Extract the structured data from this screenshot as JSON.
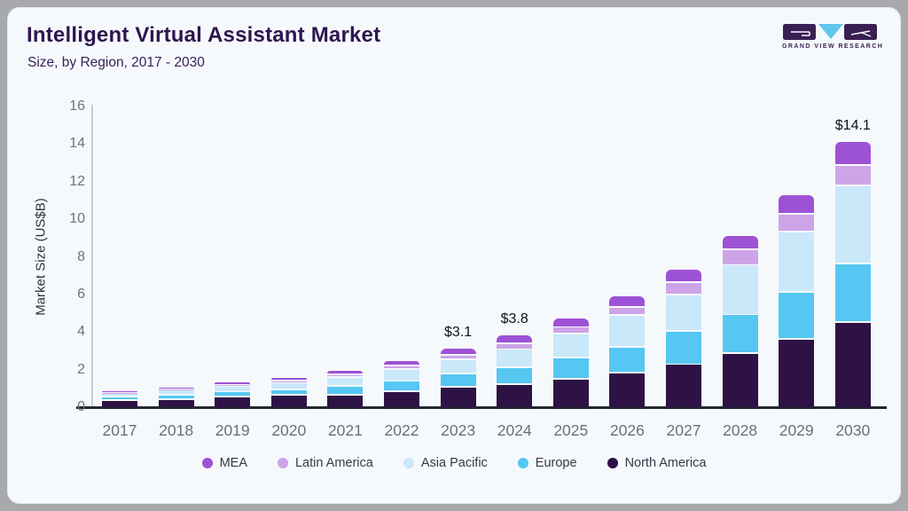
{
  "header": {
    "title": "Intelligent Virtual Assistant Market",
    "subtitle": "Size, by Region, 2017 - 2030"
  },
  "logo": {
    "brand": "GRAND VIEW RESEARCH",
    "block_color": "#3a2052",
    "triangle_color": "#5fc6ec"
  },
  "chart_data": {
    "type": "bar",
    "stacked": true,
    "title": "Intelligent Virtual Assistant Market",
    "subtitle": "Size, by Region, 2017 - 2030",
    "xlabel": "",
    "ylabel": "Market Size (US$B)",
    "ylim": [
      0,
      16
    ],
    "yticks": [
      0,
      2,
      4,
      6,
      8,
      10,
      12,
      14,
      16
    ],
    "grid": false,
    "legend_position": "bottom",
    "categories": [
      "2017",
      "2018",
      "2019",
      "2020",
      "2021",
      "2022",
      "2023",
      "2024",
      "2025",
      "2026",
      "2027",
      "2028",
      "2029",
      "2030"
    ],
    "series": [
      {
        "name": "North America",
        "color": "#2e1245",
        "values": [
          0.32,
          0.38,
          0.53,
          0.6,
          0.62,
          0.8,
          1.05,
          1.2,
          1.45,
          1.8,
          2.25,
          2.85,
          3.6,
          4.5
        ]
      },
      {
        "name": "Europe",
        "color": "#55c7f2",
        "values": [
          0.19,
          0.24,
          0.25,
          0.31,
          0.48,
          0.55,
          0.7,
          0.88,
          1.15,
          1.35,
          1.75,
          2.04,
          2.5,
          3.1
        ]
      },
      {
        "name": "Asia Pacific",
        "color": "#c9e8fa",
        "values": [
          0.2,
          0.27,
          0.3,
          0.36,
          0.47,
          0.65,
          0.75,
          0.97,
          1.28,
          1.7,
          1.95,
          2.64,
          3.2,
          4.15
        ]
      },
      {
        "name": "Latin America",
        "color": "#cda4e8",
        "values": [
          0.06,
          0.07,
          0.08,
          0.1,
          0.13,
          0.16,
          0.25,
          0.32,
          0.35,
          0.45,
          0.65,
          0.82,
          0.95,
          1.1
        ]
      },
      {
        "name": "MEA",
        "color": "#9d52d5",
        "values": [
          0.08,
          0.1,
          0.14,
          0.18,
          0.25,
          0.29,
          0.35,
          0.43,
          0.47,
          0.6,
          0.7,
          0.75,
          1.05,
          1.25
        ]
      }
    ],
    "totals": [
      0.85,
      1.06,
      1.3,
      1.55,
      1.95,
      2.45,
      3.1,
      3.8,
      4.7,
      5.9,
      7.3,
      9.1,
      11.3,
      14.1
    ],
    "bar_labels": [
      {
        "year": "2023",
        "label": "$3.1"
      },
      {
        "year": "2024",
        "label": "$3.8"
      },
      {
        "year": "2030",
        "label": "$14.1"
      }
    ],
    "legend_order": [
      "MEA",
      "Latin America",
      "Asia Pacific",
      "Europe",
      "North America"
    ]
  }
}
